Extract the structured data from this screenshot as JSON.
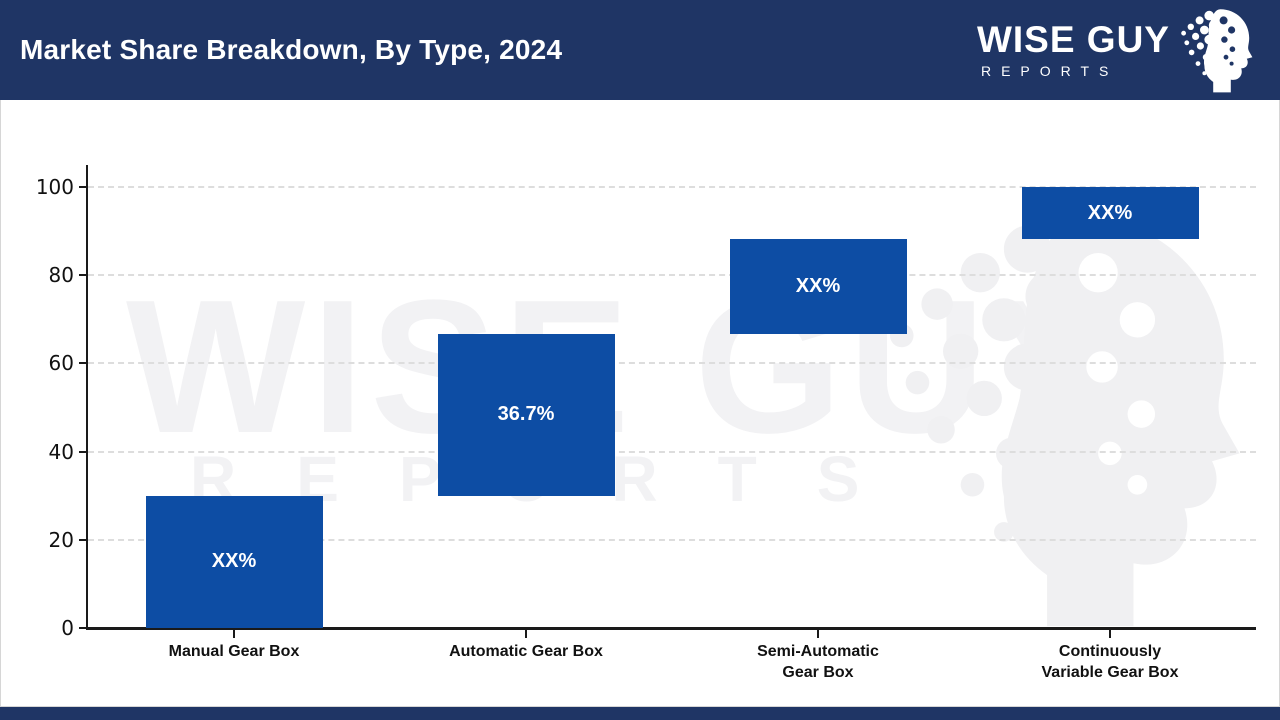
{
  "header": {
    "title": "Market Share Breakdown, By Type, 2024",
    "brand": {
      "line1": "WISE GUY",
      "line2": "REPORTS"
    }
  },
  "watermark": {
    "line1": "WISE GUY",
    "line2": "REPORTS"
  },
  "chart_data": {
    "type": "bar",
    "subtype": "floating-segment-waterfall",
    "title": "Market Share Breakdown, By Type, 2024",
    "categories": [
      "Manual Gear Box",
      "Automatic Gear Box",
      "Semi-Automatic Gear Box",
      "Continuously Variable Gear Box"
    ],
    "category_lines": [
      [
        "Manual Gear Box"
      ],
      [
        "Automatic Gear Box"
      ],
      [
        "Semi-Automatic",
        "Gear Box"
      ],
      [
        "Continuously",
        "Variable Gear Box"
      ]
    ],
    "bars": [
      {
        "category": "Manual Gear Box",
        "start": 0,
        "end": 30,
        "label": "XX%"
      },
      {
        "category": "Automatic Gear Box",
        "start": 30,
        "end": 66.7,
        "label": "36.7%"
      },
      {
        "category": "Semi-Automatic Gear Box",
        "start": 66.7,
        "end": 88.1,
        "label": "XX%"
      },
      {
        "category": "Continuously Variable Gear Box",
        "start": 88.1,
        "end": 100,
        "label": "XX%"
      }
    ],
    "values_shown": [
      "XX%",
      "36.7%",
      "XX%",
      "XX%"
    ],
    "ylim": [
      0,
      100
    ],
    "yticks": [
      0,
      20,
      40,
      60,
      80,
      100
    ],
    "grid": true,
    "legend": false,
    "bar_color": "#0d4da4"
  },
  "colors": {
    "header_bg": "#1f3565",
    "bar": "#0d4da4",
    "grid": "#dddddd",
    "axis": "#1a1a1a",
    "watermark": "#f2f2f4",
    "frame": "#d6d6d6"
  }
}
